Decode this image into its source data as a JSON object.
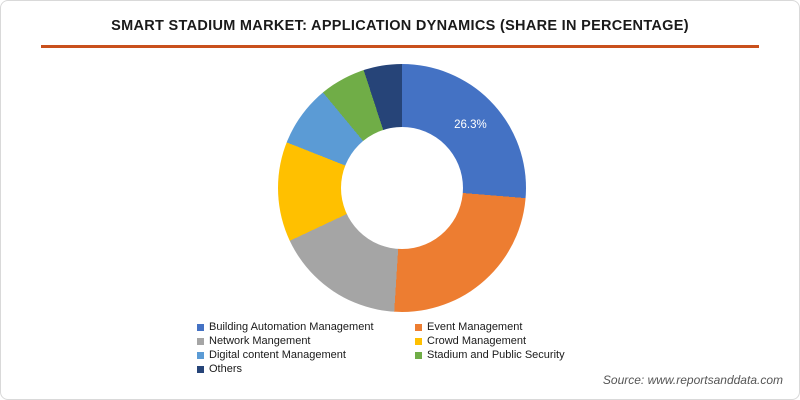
{
  "title": "SMART STADIUM MARKET: APPLICATION DYNAMICS (SHARE IN PERCENTAGE)",
  "source": "Source: www.reportsanddata.com",
  "accent_color": "#C9501C",
  "chart_data": {
    "type": "pie",
    "donut": true,
    "hole_ratio": 0.49,
    "start_angle_deg": 0,
    "direction": "clockwise",
    "title": "SMART STADIUM MARKET: APPLICATION DYNAMICS (SHARE IN PERCENTAGE)",
    "categories": [
      "Building Automation Management",
      "Event Management",
      "Network Mangement",
      "Crowd Management",
      "Digital content Management",
      "Stadium and Public Security",
      "Others"
    ],
    "values": [
      26.3,
      24.7,
      17.0,
      13.0,
      8.0,
      6.0,
      5.0
    ],
    "colors": [
      "#4472C4",
      "#ED7D31",
      "#A5A5A5",
      "#FFC000",
      "#5B9BD5",
      "#70AD47",
      "#264478"
    ],
    "data_labels": [
      {
        "index": 0,
        "text": "26.3%"
      }
    ],
    "legend_position": "bottom",
    "legend_columns": 2
  }
}
